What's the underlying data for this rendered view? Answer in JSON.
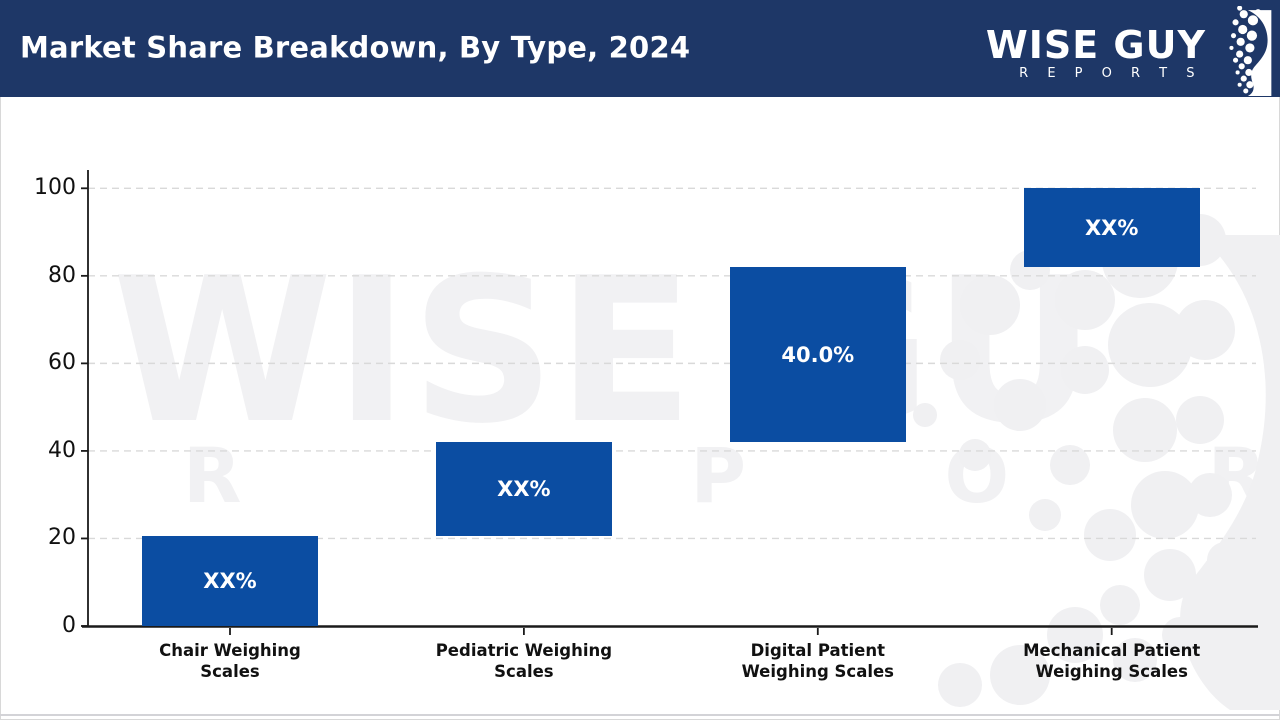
{
  "header": {
    "title": "Market Share Breakdown, By Type, 2024",
    "logo": {
      "wordmark": "WISE GUY",
      "subtext": "R E P O R T S"
    }
  },
  "watermark": {
    "line1": "WISE GU",
    "line2": "R E P O R T S"
  },
  "colors": {
    "header_bg": "#1E3767",
    "title_text": "#FFFFFF",
    "bar_fill": "#0B4DA2",
    "bar_label_text": "#FFFFFF",
    "grid_line": "#D9D9D9",
    "axis_line": "#1A1A1A",
    "tick_label_text": "#111111",
    "watermark_gray": "#F0F0F2"
  },
  "chart_data": {
    "type": "bar",
    "subtype": "waterfall",
    "title": "Market Share Breakdown, By Type, 2024",
    "xlabel": "",
    "ylabel": "",
    "ylim": [
      0,
      100
    ],
    "yticks": [
      0,
      20,
      40,
      60,
      80,
      100
    ],
    "grid": "horizontal-dashed",
    "legend": "none",
    "categories": [
      "Chair Weighing Scales",
      "Pediatric Weighing Scales",
      "Digital Patient Weighing Scales",
      "Mechanical Patient Weighing Scales"
    ],
    "category_lines": [
      [
        "Chair Weighing",
        "Scales"
      ],
      [
        "Pediatric Weighing",
        "Scales"
      ],
      [
        "Digital Patient",
        "Weighing Scales"
      ],
      [
        "Mechanical Patient",
        "Weighing Scales"
      ]
    ],
    "segments": [
      {
        "category": "Chair Weighing Scales",
        "start": 0,
        "end": 20.6,
        "label": "XX%"
      },
      {
        "category": "Pediatric Weighing Scales",
        "start": 20.6,
        "end": 42.0,
        "label": "XX%"
      },
      {
        "category": "Digital Patient Weighing Scales",
        "start": 42.0,
        "end": 82.0,
        "label": "40.0%"
      },
      {
        "category": "Mechanical Patient Weighing Scales",
        "start": 82.0,
        "end": 100,
        "label": "XX%"
      }
    ]
  }
}
